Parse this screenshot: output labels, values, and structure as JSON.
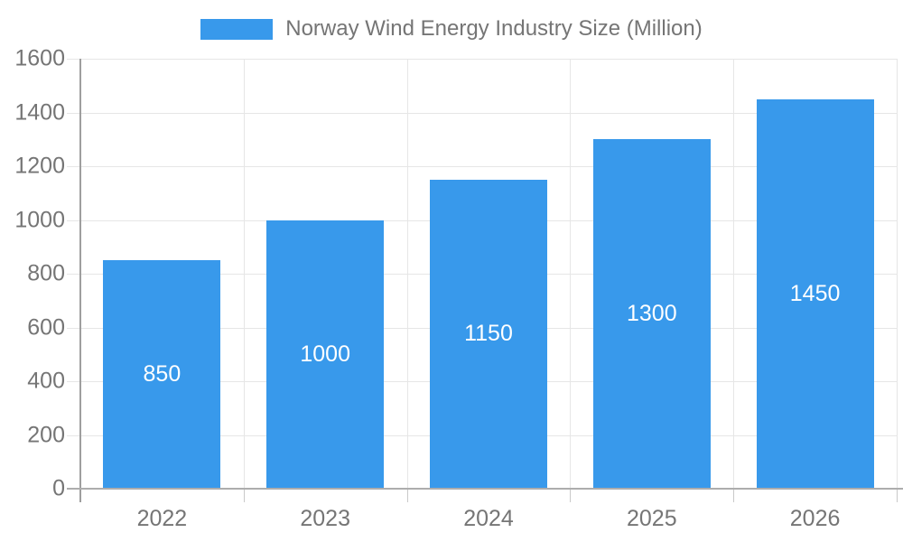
{
  "legend": {
    "label": "Norway Wind Energy Industry Size (Million)"
  },
  "chart_data": {
    "type": "bar",
    "title": "Norway Wind Energy Industry Size (Million)",
    "categories": [
      "2022",
      "2023",
      "2024",
      "2025",
      "2026"
    ],
    "values": [
      850,
      1000,
      1150,
      1300,
      1450
    ],
    "xlabel": "",
    "ylabel": "",
    "ylim": [
      0,
      1600
    ],
    "y_ticks": [
      0,
      200,
      400,
      600,
      800,
      1000,
      1200,
      1400,
      1600
    ],
    "grid": true,
    "legend_position": "top",
    "bar_labels_inside": true
  },
  "colors": {
    "bar": "#3899EB",
    "grid": "#E6E6E6",
    "axis": "#9E9E9E",
    "zero_line": "#ADADAD",
    "bottom_tick": "#C9C9C9",
    "text": "#757575",
    "bar_label_text": "#FFFFFF",
    "background": "#FFFFFF"
  }
}
